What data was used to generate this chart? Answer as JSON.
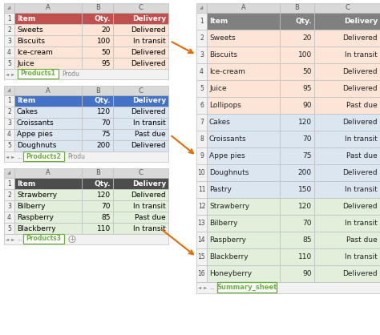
{
  "sheet1": {
    "header": [
      "Item",
      "Qty.",
      "Delivery"
    ],
    "rows": [
      [
        "Sweets",
        "20",
        "Delivered"
      ],
      [
        "Biscuits",
        "100",
        "In transit"
      ],
      [
        "Ice-cream",
        "50",
        "Delivered"
      ],
      [
        "Juice",
        "95",
        "Delivered"
      ]
    ],
    "tab_name": "Products1",
    "header_color": "#c0504d",
    "data_color": "#fce4d6"
  },
  "sheet2": {
    "header": [
      "Item",
      "Qty.",
      "Delivery"
    ],
    "rows": [
      [
        "Cakes",
        "120",
        "Delivered"
      ],
      [
        "Croissants",
        "70",
        "In transit"
      ],
      [
        "Appe pies",
        "75",
        "Past due"
      ],
      [
        "Doughnuts",
        "200",
        "Delivered"
      ]
    ],
    "tab_name": "Products2",
    "header_color": "#4472c4",
    "data_color": "#dce6f1"
  },
  "sheet3": {
    "header": [
      "Item",
      "Qty.",
      "Delivery"
    ],
    "rows": [
      [
        "Strawberry",
        "120",
        "Delivered"
      ],
      [
        "Bilberry",
        "70",
        "In transit"
      ],
      [
        "Raspberry",
        "85",
        "Past due"
      ],
      [
        "Blackberry",
        "110",
        "In transit"
      ]
    ],
    "tab_name": "Products3",
    "header_color": "#4d4d4d",
    "data_color": "#e2efda"
  },
  "summary": {
    "header": [
      "Item",
      "Qty.",
      "Delivery"
    ],
    "rows": [
      [
        "Sweets",
        "20",
        "Delivered"
      ],
      [
        "Biscuits",
        "100",
        "In transit"
      ],
      [
        "Ice-cream",
        "50",
        "Delivered"
      ],
      [
        "Juice",
        "95",
        "Delivered"
      ],
      [
        "Lollipops",
        "90",
        "Past due"
      ],
      [
        "Cakes",
        "120",
        "Delivered"
      ],
      [
        "Croissants",
        "70",
        "In transit"
      ],
      [
        "Appe pies",
        "75",
        "Past due"
      ],
      [
        "Doughnuts",
        "200",
        "Delivered"
      ],
      [
        "Pastry",
        "150",
        "In transit"
      ],
      [
        "Strawberry",
        "120",
        "Delivered"
      ],
      [
        "Bilberry",
        "70",
        "In transit"
      ],
      [
        "Raspberry",
        "85",
        "Past due"
      ],
      [
        "Blackberry",
        "110",
        "In transit"
      ],
      [
        "Honeyberry",
        "90",
        "Delivered"
      ]
    ],
    "tab_name": "Summary_sheet",
    "header_color": "#808080",
    "row_colors": [
      "salmon",
      "salmon",
      "salmon",
      "salmon",
      "salmon",
      "blue",
      "blue",
      "blue",
      "blue",
      "blue",
      "green",
      "green",
      "green",
      "green",
      "green"
    ]
  },
  "color_map": {
    "salmon": "#fce4d6",
    "blue": "#dce6f1",
    "green": "#e2efda"
  },
  "col_letter_bg": "#d9d9d9",
  "row_num_bg": "#f2f2f2",
  "tab_bar_bg": "#f2f2f2",
  "border_color": "#bfbfbf",
  "tab_text_color": "#70ad47",
  "arrow_color": "#e36c09",
  "bg_color": "#ffffff"
}
